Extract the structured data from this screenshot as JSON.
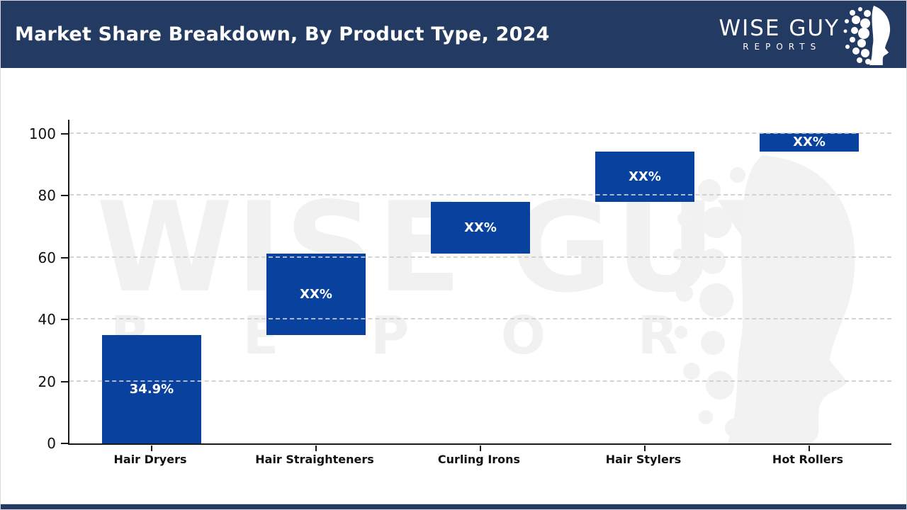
{
  "header": {
    "title": "Market Share Breakdown, By Product Type, 2024",
    "logo": {
      "line1": "WISE GUY",
      "line2": "REPORTS"
    }
  },
  "watermark": {
    "line1": "WISE GUY",
    "line2": "REPORTS"
  },
  "colors": {
    "header_bg": "#233a63",
    "footer_bg": "#233a63",
    "bar": "#09429e",
    "axis": "#1a1a1a",
    "watermark": "#f1f1f1"
  },
  "chart_data": {
    "type": "bar",
    "subtype": "waterfall",
    "title": "Market Share Breakdown, By Product Type, 2024",
    "categories": [
      "Hair Dryers",
      "Hair Straighteners",
      "Curling Irons",
      "Hair Stylers",
      "Hot Rollers"
    ],
    "segments": [
      {
        "category": "Hair Dryers",
        "start": 0,
        "end": 34.9,
        "label": "34.9%"
      },
      {
        "category": "Hair Straighteners",
        "start": 34.9,
        "end": 61.3,
        "label": "XX%"
      },
      {
        "category": "Curling Irons",
        "start": 61.3,
        "end": 78.0,
        "label": "XX%"
      },
      {
        "category": "Hair Stylers",
        "start": 78.0,
        "end": 94.2,
        "label": "XX%"
      },
      {
        "category": "Hot Rollers",
        "start": 94.2,
        "end": 100.2,
        "label": "XX%"
      }
    ],
    "yticks": [
      0,
      20,
      40,
      60,
      80,
      100
    ],
    "ylim": [
      0,
      104.5
    ],
    "xlabel": "",
    "ylabel": "",
    "grid": "dashed-horizontal",
    "legend": "none"
  }
}
